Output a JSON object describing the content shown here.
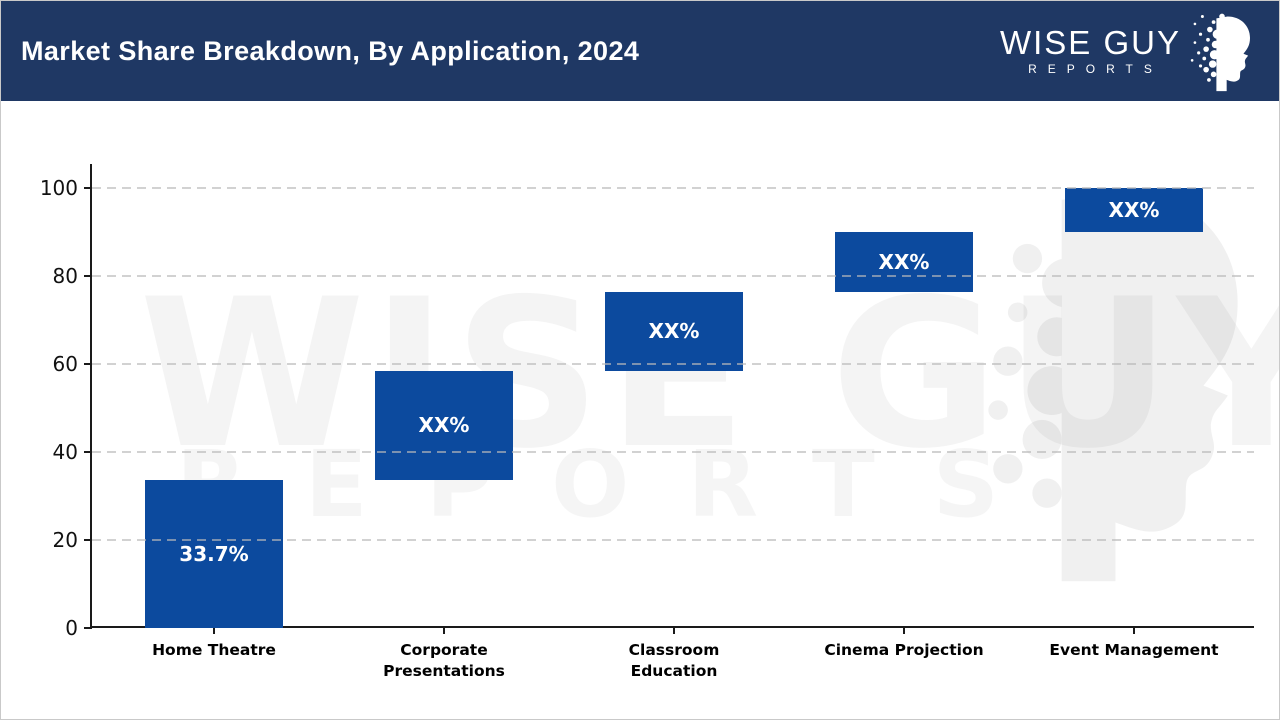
{
  "header": {
    "title": "Market Share Breakdown, By Application, 2024",
    "logo": {
      "line1": "WISE GUY",
      "line2": "REPORTS"
    }
  },
  "watermark": {
    "line1": "WISE GUY",
    "line2": "REPORTS"
  },
  "colors": {
    "header_bg": "#1f3864",
    "bar": "#0c4a9e",
    "grid": "#c8c8c8",
    "axis": "#1a1a1a",
    "bar_label": "#ffffff"
  },
  "chart_data": {
    "type": "bar",
    "subtype": "waterfall",
    "title": "Market Share Breakdown, By Application, 2024",
    "categories": [
      "Home Theatre",
      "Corporate Presentations",
      "Classroom Education",
      "Cinema Projection",
      "Event Management"
    ],
    "category_lines": [
      [
        "Home Theatre"
      ],
      [
        "Corporate",
        "Presentations"
      ],
      [
        "Classroom",
        "Education"
      ],
      [
        "Cinema Projection"
      ],
      [
        "Event Management"
      ]
    ],
    "segments": [
      {
        "start": 0,
        "end": 33.7,
        "label": "33.7%"
      },
      {
        "start": 33.7,
        "end": 58.4,
        "label": "XX%"
      },
      {
        "start": 58.4,
        "end": 76.4,
        "label": "XX%"
      },
      {
        "start": 76.4,
        "end": 90.0,
        "label": "XX%"
      },
      {
        "start": 90.0,
        "end": 100,
        "label": "XX%"
      }
    ],
    "xlabel": "",
    "ylabel": "",
    "ylim": [
      0,
      100
    ],
    "yticks": [
      0,
      20,
      40,
      60,
      80,
      100
    ],
    "grid": true,
    "legend": false,
    "bar_color": "#0c4a9e"
  }
}
